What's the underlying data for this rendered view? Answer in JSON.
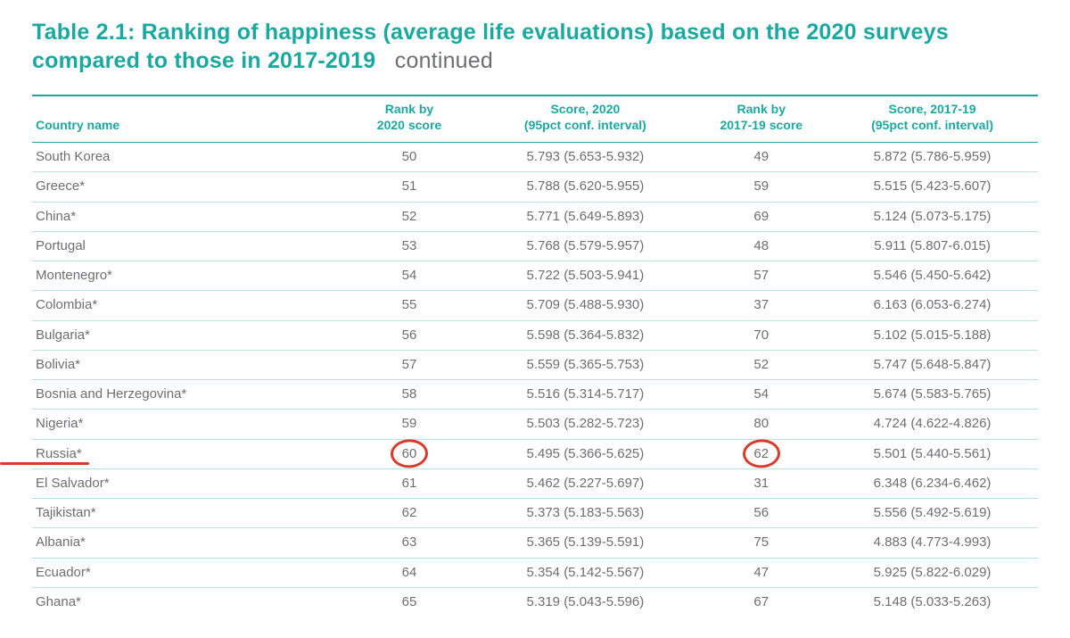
{
  "colors": {
    "accent": "#1aa9a0",
    "body_text": "#6d6e71",
    "row_border": "#b8e3df",
    "header_rule": "#1aa9a0",
    "annotation": "#d83a2b",
    "background": "#ffffff"
  },
  "title": {
    "main": "Table 2.1: Ranking of happiness (average life evaluations) based on the 2020 surveys compared to those in 2017-2019",
    "continued": "continued"
  },
  "columns": [
    {
      "line1": "",
      "line2": "Country name",
      "align": "left"
    },
    {
      "line1": "Rank by",
      "line2": "2020 score",
      "align": "center"
    },
    {
      "line1": "Score, 2020",
      "line2": "(95pct conf. interval)",
      "align": "center"
    },
    {
      "line1": "Rank by",
      "line2": "2017-19 score",
      "align": "center"
    },
    {
      "line1": "Score, 2017-19",
      "line2": "(95pct conf. interval)",
      "align": "center"
    }
  ],
  "rows": [
    {
      "country": "South Korea",
      "rank2020": "50",
      "score2020": "5.793 (5.653-5.932)",
      "rank1719": "49",
      "score1719": "5.872 (5.786-5.959)"
    },
    {
      "country": "Greece*",
      "rank2020": "51",
      "score2020": "5.788 (5.620-5.955)",
      "rank1719": "59",
      "score1719": "5.515 (5.423-5.607)"
    },
    {
      "country": "China*",
      "rank2020": "52",
      "score2020": "5.771 (5.649-5.893)",
      "rank1719": "69",
      "score1719": "5.124 (5.073-5.175)"
    },
    {
      "country": "Portugal",
      "rank2020": "53",
      "score2020": "5.768 (5.579-5.957)",
      "rank1719": "48",
      "score1719": "5.911 (5.807-6.015)"
    },
    {
      "country": "Montenegro*",
      "rank2020": "54",
      "score2020": "5.722 (5.503-5.941)",
      "rank1719": "57",
      "score1719": "5.546 (5.450-5.642)"
    },
    {
      "country": "Colombia*",
      "rank2020": "55",
      "score2020": "5.709 (5.488-5.930)",
      "rank1719": "37",
      "score1719": "6.163 (6.053-6.274)"
    },
    {
      "country": "Bulgaria*",
      "rank2020": "56",
      "score2020": "5.598 (5.364-5.832)",
      "rank1719": "70",
      "score1719": "5.102 (5.015-5.188)"
    },
    {
      "country": "Bolivia*",
      "rank2020": "57",
      "score2020": "5.559 (5.365-5.753)",
      "rank1719": "52",
      "score1719": "5.747 (5.648-5.847)"
    },
    {
      "country": "Bosnia and Herzegovina*",
      "rank2020": "58",
      "score2020": "5.516 (5.314-5.717)",
      "rank1719": "54",
      "score1719": "5.674 (5.583-5.765)"
    },
    {
      "country": "Nigeria*",
      "rank2020": "59",
      "score2020": "5.503 (5.282-5.723)",
      "rank1719": "80",
      "score1719": "4.724 (4.622-4.826)"
    },
    {
      "country": "Russia*",
      "rank2020": "60",
      "score2020": "5.495 (5.366-5.625)",
      "rank1719": "62",
      "score1719": "5.501 (5.440-5.561)",
      "highlight": true
    },
    {
      "country": "El Salvador*",
      "rank2020": "61",
      "score2020": "5.462 (5.227-5.697)",
      "rank1719": "31",
      "score1719": "6.348 (6.234-6.462)"
    },
    {
      "country": "Tajikistan*",
      "rank2020": "62",
      "score2020": "5.373 (5.183-5.563)",
      "rank1719": "56",
      "score1719": "5.556 (5.492-5.619)"
    },
    {
      "country": "Albania*",
      "rank2020": "63",
      "score2020": "5.365 (5.139-5.591)",
      "rank1719": "75",
      "score1719": "4.883 (4.773-4.993)"
    },
    {
      "country": "Ecuador*",
      "rank2020": "64",
      "score2020": "5.354 (5.142-5.567)",
      "rank1719": "47",
      "score1719": "5.925 (5.822-6.029)"
    },
    {
      "country": "Ghana*",
      "rank2020": "65",
      "score2020": "5.319 (5.043-5.596)",
      "rank1719": "67",
      "score1719": "5.148 (5.033-5.263)"
    }
  ]
}
